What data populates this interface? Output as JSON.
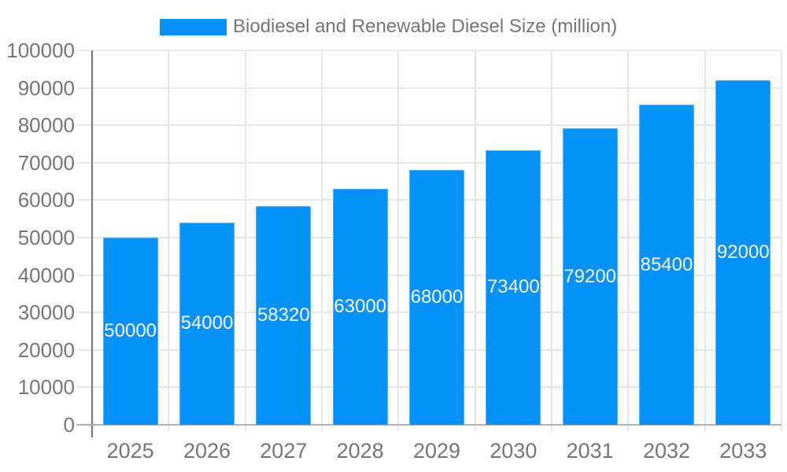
{
  "legend": {
    "label": "Biodiesel and Renewable Diesel Size (million)"
  },
  "chart_data": {
    "type": "bar",
    "title": "Biodiesel and Renewable Diesel Size (million)",
    "categories": [
      "2025",
      "2026",
      "2027",
      "2028",
      "2029",
      "2030",
      "2031",
      "2032",
      "2033"
    ],
    "series": [
      {
        "name": "Biodiesel and Renewable Diesel Size (million)",
        "values": [
          50000,
          54000,
          58320,
          63000,
          68000,
          73400,
          79200,
          85400,
          92000
        ]
      }
    ],
    "bar_value_labels": [
      "50000",
      "54000",
      "58320",
      "63000",
      "68000",
      "73400",
      "79200",
      "85400",
      "92000"
    ],
    "y_tick_labels": [
      "0",
      "10000",
      "20000",
      "30000",
      "40000",
      "50000",
      "60000",
      "70000",
      "80000",
      "90000",
      "100000"
    ],
    "xlabel": "",
    "ylabel": "",
    "ylim": [
      0,
      100000
    ],
    "ytick_step": 10000,
    "grid": true,
    "legend_position": "top",
    "colors": {
      "series": "#0590fa",
      "bar_border": "#5fb0f5",
      "grid": "#e6e6e6",
      "x_axis_line": "#b0b0b0",
      "y_axis_line": "#757575",
      "tick_text": "#757575",
      "bar_label_text": "#ffffff",
      "background": "#ffffff"
    }
  }
}
